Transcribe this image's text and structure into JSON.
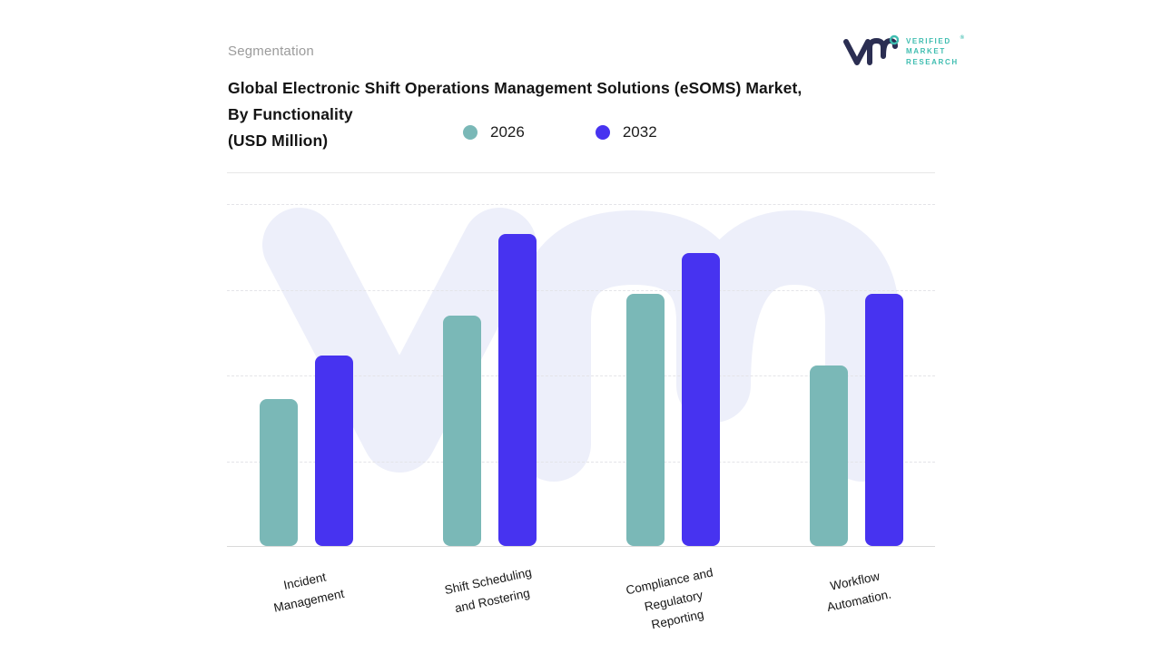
{
  "header": {
    "segmentation_label": "Segmentation",
    "logo": {
      "brand_lines": [
        "VERIFIED",
        "MARKET",
        "RESEARCH"
      ],
      "registered_mark": "®",
      "accent_color": "#3ebdb0",
      "mark_color": "#2b2e52"
    }
  },
  "title": {
    "line1": "Global Electronic Shift Operations Management Solutions (eSOMS) Market,",
    "line2": "By Functionality",
    "line3": "(USD Million)"
  },
  "legend": [
    {
      "label": "2026",
      "color": "#7ab8b7"
    },
    {
      "label": "2032",
      "color": "#4733f0"
    }
  ],
  "chart_data": {
    "type": "bar",
    "title": "Global Electronic Shift Operations Management Solutions (eSOMS) Market, By Functionality (USD Million)",
    "ylabel": "USD Million",
    "categories": [
      "Incident\nManagement",
      "Shift Scheduling\nand Rostering",
      "Compliance and\nRegulatory\nReporting",
      "Workflow\nAutomation."
    ],
    "series": [
      {
        "name": "2026",
        "color": "#7ab8b7",
        "values": [
          47,
          74,
          81,
          58
        ]
      },
      {
        "name": "2032",
        "color": "#4733f0",
        "values": [
          61,
          100,
          94,
          81
        ]
      }
    ],
    "ylim": [
      0,
      110
    ],
    "grid": "dashed-horizontal",
    "legend_position": "top",
    "value_note": "values estimated from bar heights; no y-axis tick labels shown"
  }
}
